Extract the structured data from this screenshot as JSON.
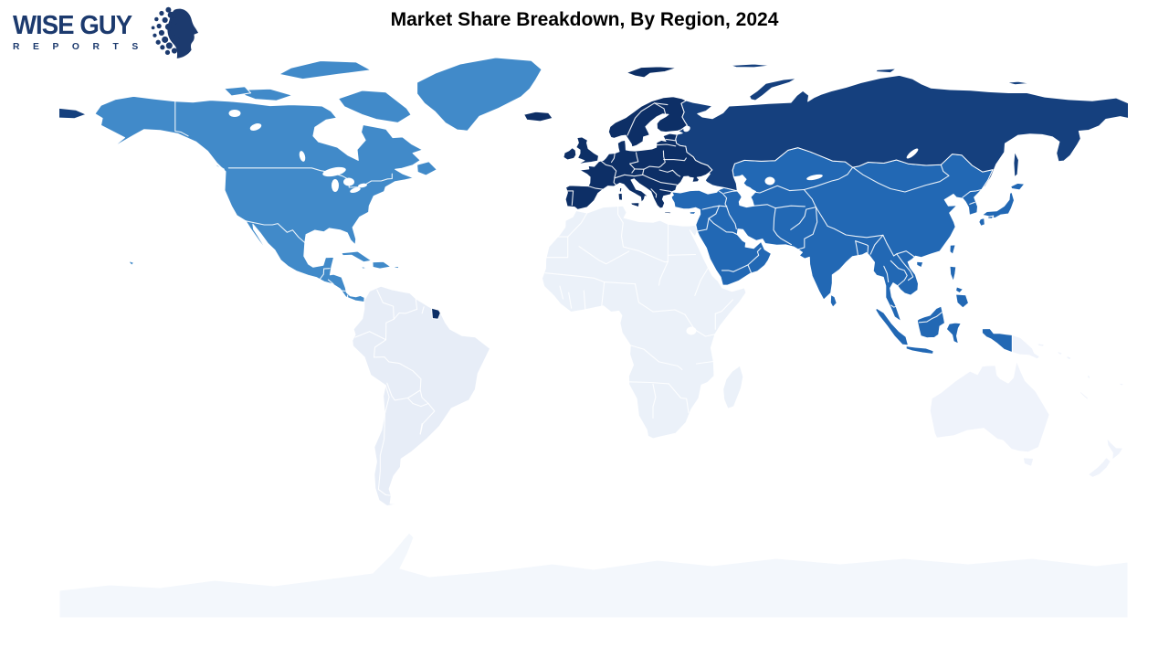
{
  "logo": {
    "line1": "WISE GUY",
    "line2": "R E P O R T S"
  },
  "title": "Market Share Breakdown, By Region, 2024",
  "chart_data": {
    "type": "choropleth",
    "title": "Market Share Breakdown, By Region, 2024",
    "year": "2024",
    "legend_shown": false,
    "values_labeled": false,
    "regions": [
      {
        "name": "Europe",
        "shade_rank": 1,
        "color": "#0D2F66"
      },
      {
        "name": "Russia / CIS",
        "shade_rank": 2,
        "color": "#15407E"
      },
      {
        "name": "Asia Pacific & Middle East",
        "shade_rank": 3,
        "color": "#2268B4"
      },
      {
        "name": "North America",
        "shade_rank": 4,
        "color": "#418AC9"
      },
      {
        "name": "South America",
        "shade_rank": 5,
        "color": "#E7EDF7"
      },
      {
        "name": "Africa",
        "shade_rank": 6,
        "color": "#EBF1F9"
      },
      {
        "name": "Oceania",
        "shade_rank": 7,
        "color": "#EFF3FB"
      },
      {
        "name": "Antarctica",
        "shade_rank": 8,
        "color": "#F3F7FC"
      }
    ],
    "map_colors": {
      "europe": "#0D2F66",
      "russia": "#15407E",
      "asiaPacific": "#2268B4",
      "northAmerica": "#418AC9",
      "southAmerica": "#E7EDF7",
      "africa": "#EBF1F9",
      "oceania": "#EFF3FB",
      "antarctica": "#F3F7FC",
      "border": "#FFFFFF",
      "ocean": "#FFFFFF",
      "logo_navy": "#1C3A6E"
    }
  }
}
